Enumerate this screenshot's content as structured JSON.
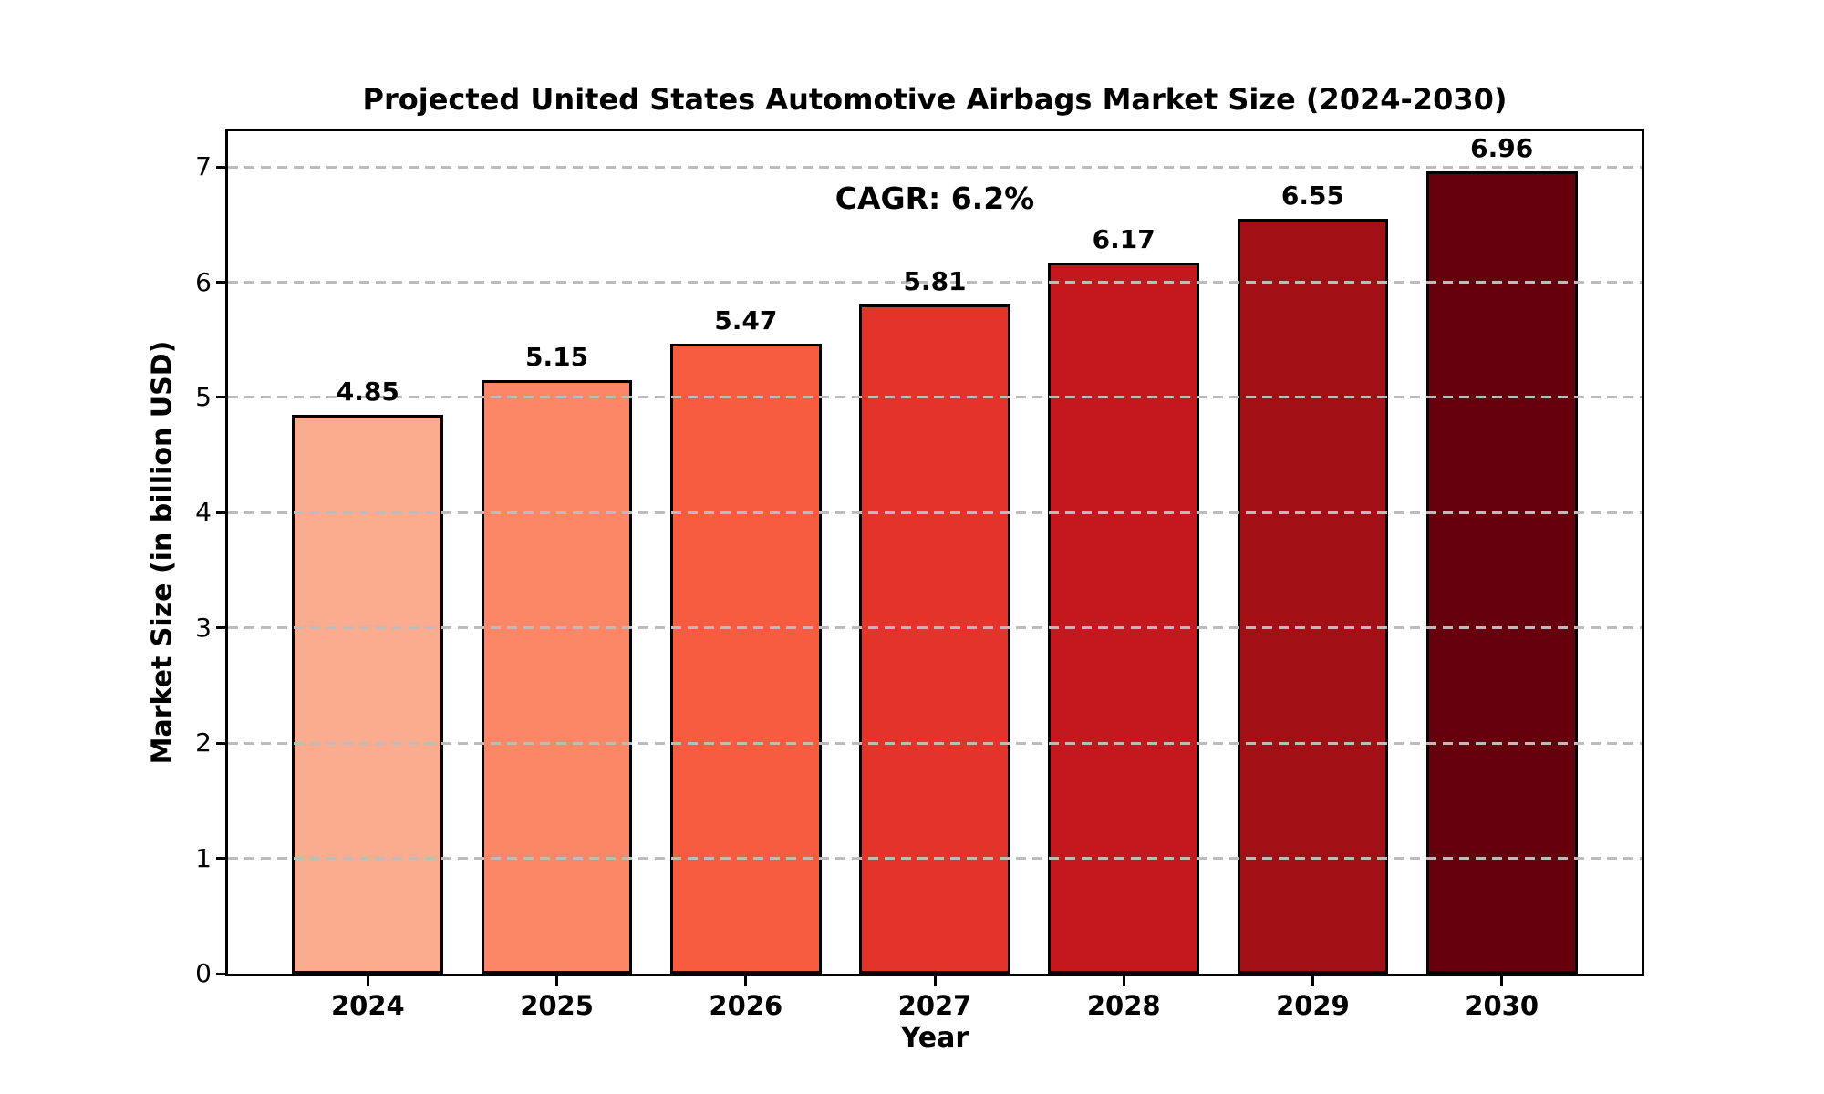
{
  "chart_data": {
    "type": "bar",
    "title": "Projected United States Automotive Airbags Market Size (2024-2030)",
    "annotation": "CAGR: 6.2%",
    "xlabel": "Year",
    "ylabel": "Market Size (in billion USD)",
    "categories": [
      "2024",
      "2025",
      "2026",
      "2027",
      "2028",
      "2029",
      "2030"
    ],
    "values": [
      4.85,
      5.15,
      5.47,
      5.81,
      6.17,
      6.55,
      6.96
    ],
    "value_labels": [
      "4.85",
      "5.15",
      "5.47",
      "5.81",
      "6.17",
      "6.55",
      "6.96"
    ],
    "bar_colors": [
      "#FBAC8E",
      "#FB8767",
      "#F75C41",
      "#E4332A",
      "#C3181D",
      "#A21015",
      "#67000D"
    ],
    "bar_edge_color": "#000000",
    "yticks": [
      0,
      1,
      2,
      3,
      4,
      5,
      6,
      7
    ],
    "ylim": [
      0,
      7.31
    ],
    "grid": {
      "axis": "y",
      "style": "dashed",
      "color": "#bcbcbc",
      "on_top_of_bars": true
    },
    "legend": "none",
    "text_color": "#000000",
    "background_color": "#ffffff"
  }
}
